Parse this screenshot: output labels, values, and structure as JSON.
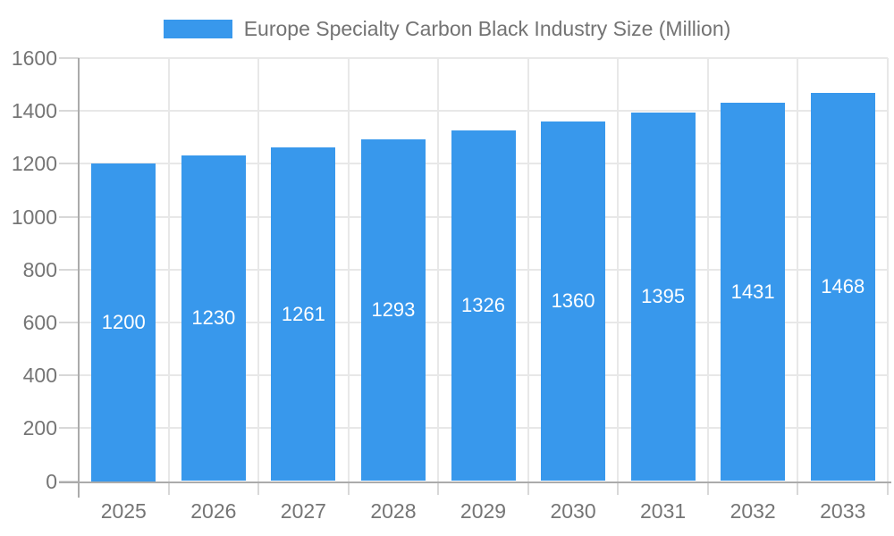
{
  "chart_data": {
    "type": "bar",
    "title": "Europe Specialty Carbon Black Industry Size (Million)",
    "legend": {
      "position": "top",
      "label": "Europe Specialty Carbon Black Industry Size (Million)"
    },
    "categories": [
      "2025",
      "2026",
      "2027",
      "2028",
      "2029",
      "2030",
      "2031",
      "2032",
      "2033"
    ],
    "values": [
      1200,
      1230,
      1261,
      1293,
      1326,
      1360,
      1395,
      1431,
      1468
    ],
    "bar_labels": [
      "1200",
      "1230",
      "1261",
      "1293",
      "1326",
      "1360",
      "1395",
      "1431",
      "1468"
    ],
    "xlabel": "",
    "ylabel": "",
    "ylim": [
      0,
      1600
    ],
    "yticks": [
      0,
      200,
      400,
      600,
      800,
      1000,
      1200,
      1400,
      1600
    ],
    "grid": true
  },
  "colors": {
    "bar": "#3898EC",
    "grid": "#E8E8E8",
    "tick": "#D8D8D8",
    "axis": "#ABABAB",
    "axis_label": "#757575",
    "legend_text": "#737373",
    "bar_label": "#FFFFFF",
    "background": "#FFFFFF"
  }
}
